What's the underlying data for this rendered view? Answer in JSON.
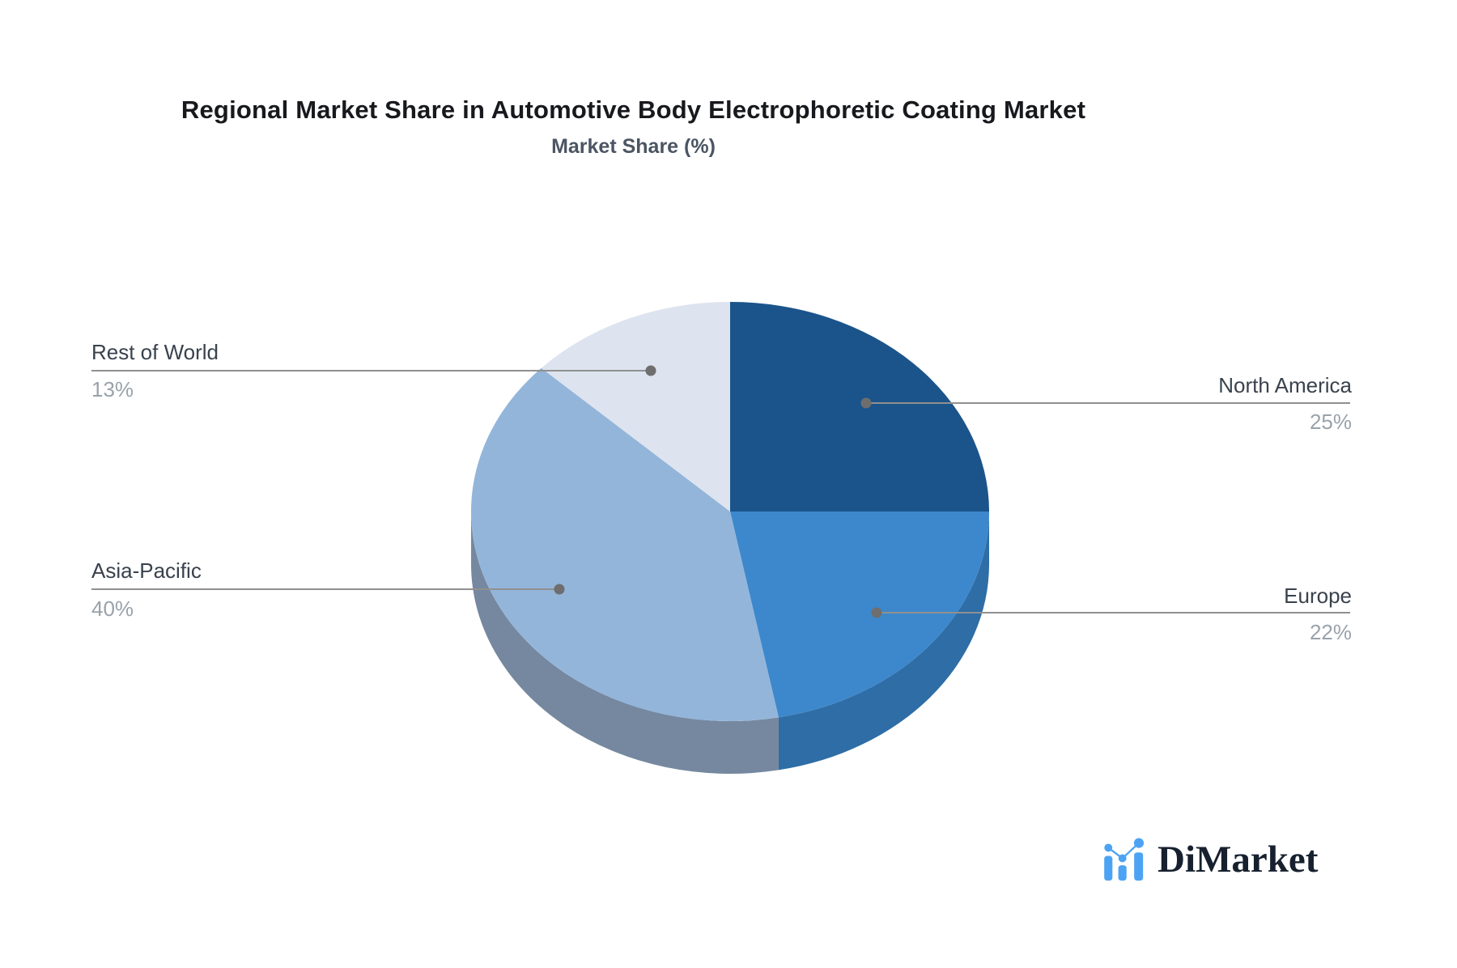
{
  "chart_data": {
    "type": "pie",
    "title": "Regional Market Share in Automotive Body Electrophoretic Coating Market",
    "subtitle": "Market Share (%)",
    "unit": "%",
    "start_angle_deg": 0,
    "direction": "clockwise",
    "style": "3d-pie",
    "slices": [
      {
        "label": "North America",
        "value": 25,
        "display": "25%",
        "color": "#1b548b",
        "side_color": "#164471"
      },
      {
        "label": "Europe",
        "value": 22,
        "display": "22%",
        "color": "#3d88cc",
        "side_color": "#2e6da6"
      },
      {
        "label": "Asia-Pacific",
        "value": 40,
        "display": "40%",
        "color": "#93b5da",
        "side_color": "#75889f"
      },
      {
        "label": "Rest of World",
        "value": 13,
        "display": "13%",
        "color": "#dde4ef",
        "side_color": "#b8c2d4"
      }
    ],
    "legend": "none",
    "labels_layout": "leader-lines"
  },
  "palette": {
    "leader_line": "#909090",
    "leader_dot": "#6e6e6e",
    "label_text": "#39424d",
    "pct_text": "#9aa2ab",
    "title_text": "#17191d",
    "subtitle_text": "#4b5563",
    "logo_blue": "#4da3f3",
    "logo_navy": "#16202e"
  },
  "logo": {
    "text": "DiMarket",
    "icon": "bar-line-chart-icon"
  }
}
